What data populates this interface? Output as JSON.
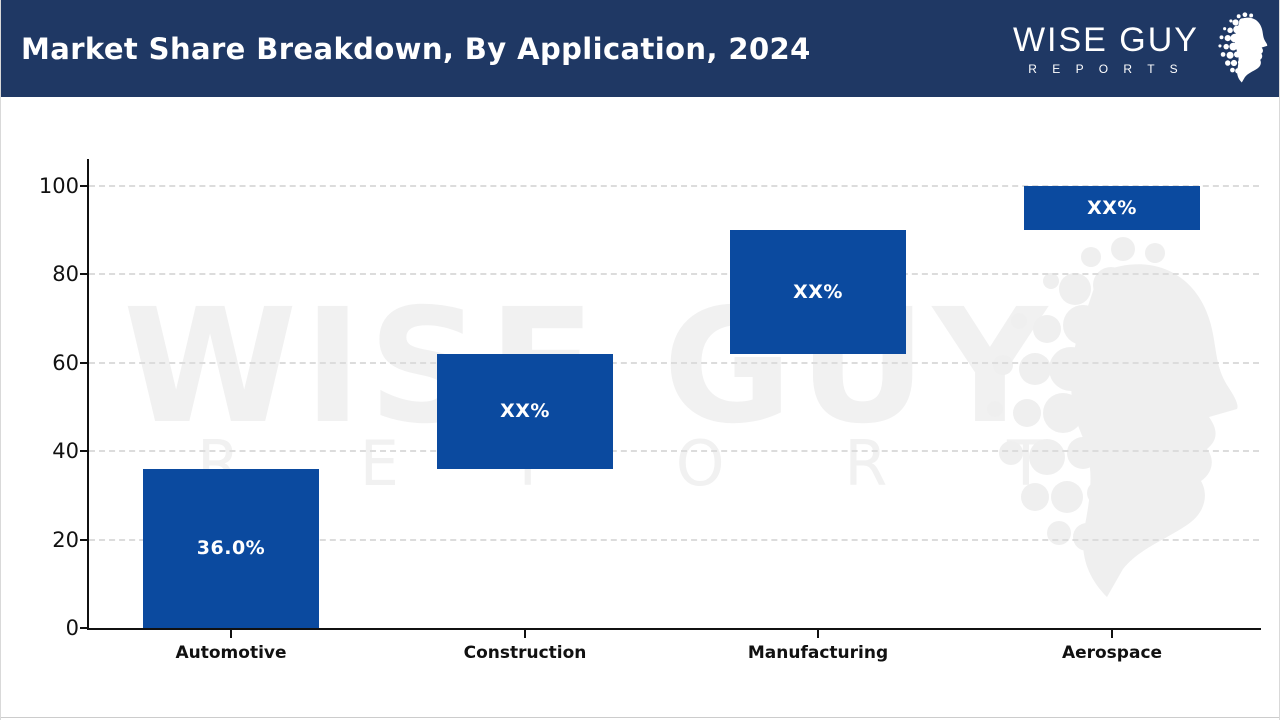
{
  "header": {
    "title": "Market Share Breakdown, By Application, 2024",
    "logo": {
      "brand_top": "WISE GUY",
      "brand_bottom": "R E P O R T S"
    }
  },
  "watermark": {
    "line1": "WISE GUY",
    "line2": "R E P O R T S"
  },
  "chart_data": {
    "type": "bar",
    "subtype": "waterfall-segmented-market-share",
    "title": "Market Share Breakdown, By Application, 2024",
    "categories": [
      "Automotive",
      "Construction",
      "Manufacturing",
      "Aerospace"
    ],
    "series": [
      {
        "name": "Market share (%)",
        "segments": [
          {
            "category": "Automotive",
            "start": 0,
            "end": 36,
            "value": 36.0,
            "label": "36.0%"
          },
          {
            "category": "Construction",
            "start": 36,
            "end": 62,
            "value": 26,
            "label": "XX%"
          },
          {
            "category": "Manufacturing",
            "start": 62,
            "end": 90,
            "value": 28,
            "label": "XX%"
          },
          {
            "category": "Aerospace",
            "start": 90,
            "end": 100,
            "value": 10,
            "label": "XX%"
          }
        ]
      }
    ],
    "xlabel": "",
    "ylabel": "",
    "ylim": [
      0,
      100
    ],
    "yticks": [
      0,
      20,
      40,
      60,
      80,
      100
    ],
    "grid": "horizontal dashed",
    "legend": "none",
    "bar_color": "#0B4A9F"
  },
  "colors": {
    "header_bg": "#1F3864",
    "bar": "#0B4A9F",
    "grid": "#DCDCDC",
    "axis": "#111111",
    "bar_label": "#FFFFFF",
    "watermark": "#F0F0F0"
  }
}
